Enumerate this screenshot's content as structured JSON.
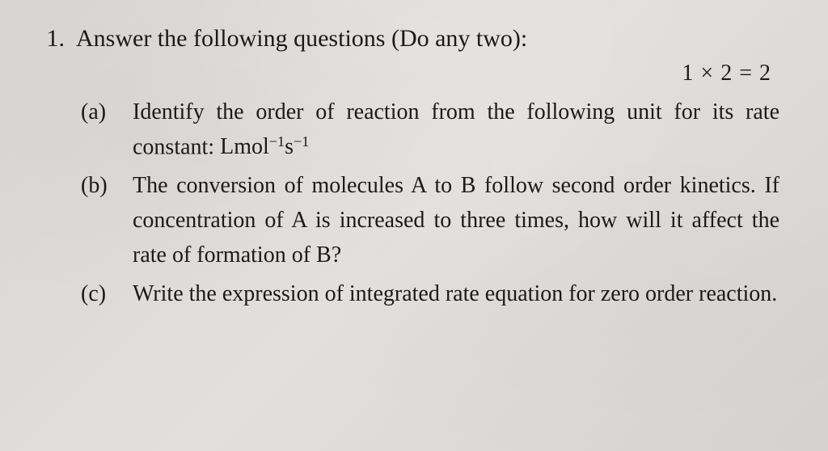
{
  "question": {
    "number": "1.",
    "title": "Answer the following questions (Do any two):",
    "marks": "1 × 2 = 2"
  },
  "parts": {
    "a": {
      "label": "(a)",
      "text_1": "Identify the order of reaction from the following unit for its rate constant: ",
      "unit_prefix": "Lmol",
      "unit_exp1": "−1",
      "unit_mid": "s",
      "unit_exp2": "−1"
    },
    "b": {
      "label": "(b)",
      "text": "The conversion of molecules A to B follow second order kinetics. If concentration of A is increased to three times, how will it affect the rate of formation of B?"
    },
    "c": {
      "label": "(c)",
      "text": "Write the expression of integrated rate equation for zero order reaction."
    }
  },
  "style": {
    "text_color": "#1a1a1a",
    "bg_color": "#dedcda",
    "font_family": "Georgia, 'Times New Roman', serif",
    "title_fontsize": 30,
    "body_fontsize": 28
  }
}
